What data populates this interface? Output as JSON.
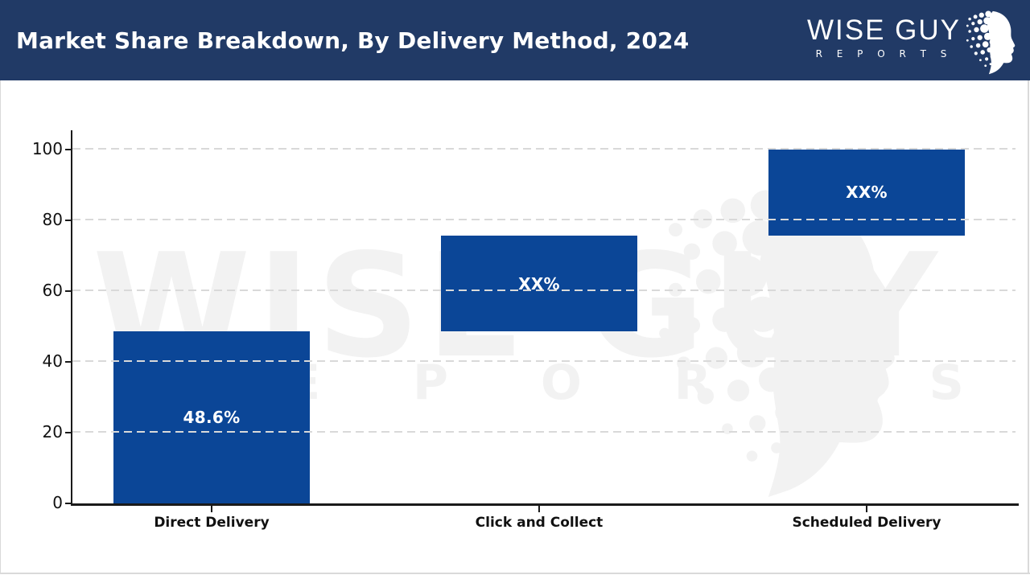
{
  "header": {
    "title": "Market Share Breakdown, By Delivery Method, 2024",
    "logo": {
      "line1": "WISE GUY",
      "line2": "R E P O R T S"
    }
  },
  "watermark": {
    "line1": "WISE GUY",
    "line2": "R E P O R T S"
  },
  "chart_data": {
    "type": "bar",
    "subtype": "waterfall-stacked-percentage",
    "title": "Market Share Breakdown, By Delivery Method, 2024",
    "categories": [
      "Direct Delivery",
      "Click and Collect",
      "Scheduled Delivery"
    ],
    "segments": [
      {
        "category": "Direct Delivery",
        "start": 0,
        "end": 48.6,
        "value_label": "48.6%"
      },
      {
        "category": "Click and Collect",
        "start": 48.6,
        "end": 75.7,
        "value_label": "XX%"
      },
      {
        "category": "Scheduled Delivery",
        "start": 75.7,
        "end": 100,
        "value_label": "XX%"
      }
    ],
    "xlabel": "",
    "ylabel": "",
    "ylim": [
      0,
      100
    ],
    "yticks": [
      0,
      20,
      40,
      60,
      80,
      100
    ],
    "grid": "horizontal-dashed",
    "legend": "none",
    "bar_color": "#0b4697",
    "bar_label_color": "#ffffff"
  },
  "colors": {
    "header_bg": "#213a66",
    "bar": "#0b4697",
    "gridline": "#d9d9d9",
    "axis": "#1a1a1a",
    "watermark": "#f2f2f2"
  }
}
